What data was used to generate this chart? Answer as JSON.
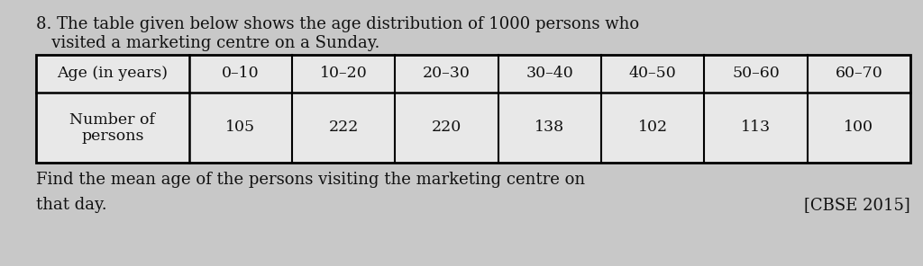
{
  "title_line1": "8. The table given below shows the age distribution of 1000 persons who",
  "title_line2": "   visited a marketing centre on a Sunday.",
  "col_header_label": "Age (in years)",
  "col_headers": [
    "0–10",
    "10–20",
    "20–30",
    "30–40",
    "40–50",
    "50–60",
    "60–70"
  ],
  "row_label_line1": "Number of",
  "row_label_line2": "persons",
  "values": [
    "105",
    "222",
    "220",
    "138",
    "102",
    "113",
    "100"
  ],
  "footer_line1": "Find the mean age of the persons visiting the marketing centre on",
  "footer_line2": "that day.",
  "citation": "[CBSE 2015]",
  "bg_color": "#c8c8c8",
  "table_fill": "#e8e8e8",
  "text_color": "#111111",
  "font_size_title": 13.0,
  "font_size_table": 12.5,
  "font_size_footer": 13.0
}
